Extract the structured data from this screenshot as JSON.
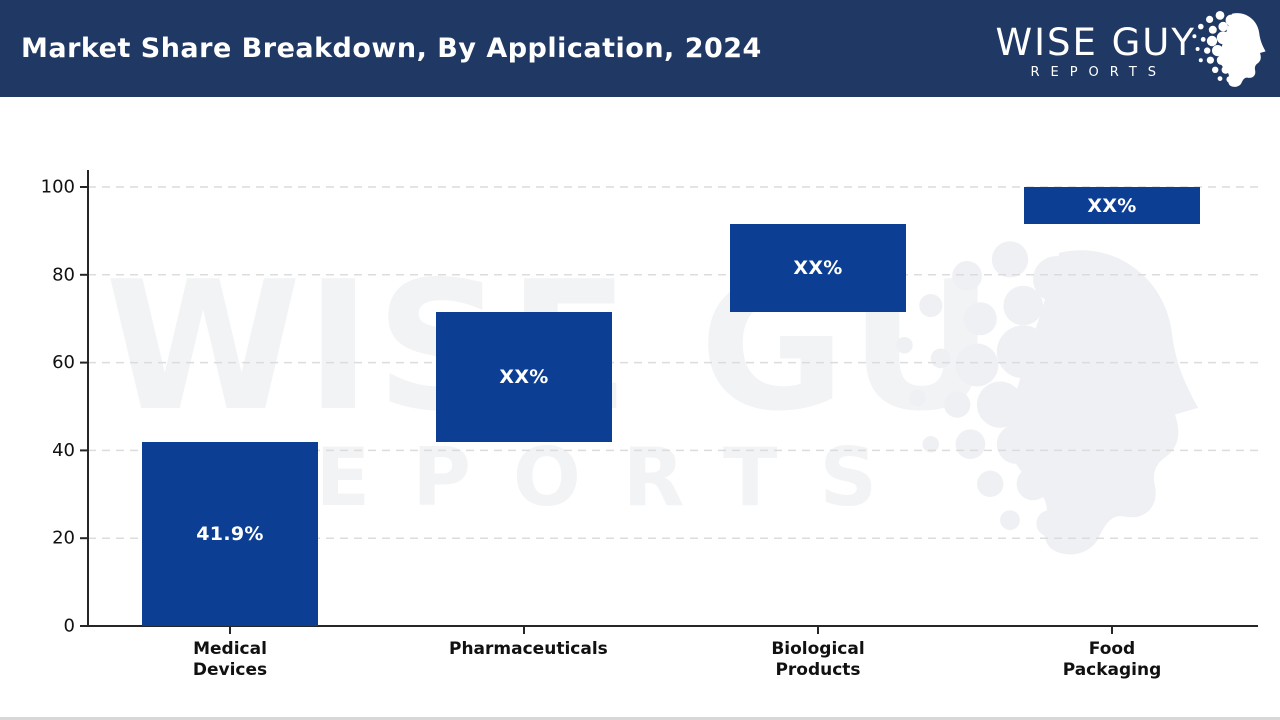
{
  "header": {
    "title": "Market Share Breakdown, By Application, 2024",
    "logo": {
      "line1": "WISE GUY",
      "line2": "REPORTS",
      "head_icon": "dotted-face-profile-icon"
    }
  },
  "watermark": {
    "line1": "WISE GU",
    "line2": "REPORTS",
    "head_icon": "dotted-face-profile-icon"
  },
  "colors": {
    "header_bg": "#1f3864",
    "bar": "#0c3e94",
    "bar_label": "#ffffff",
    "gridline": "#dcdcdc",
    "axis": "#262626",
    "watermark": "#f2f3f5"
  },
  "chart_data": {
    "type": "bar",
    "subtype": "waterfall",
    "title": "Market Share Breakdown, By Application, 2024",
    "categories": [
      "Medical Devices",
      "Pharmaceuticals",
      "Biological Products",
      "Food Packaging"
    ],
    "series": [
      {
        "name": "Market share (%)",
        "segments": [
          {
            "category": "Medical Devices",
            "start": 0,
            "end": 41.9,
            "label": "41.9%"
          },
          {
            "category": "Pharmaceuticals",
            "start": 41.9,
            "end": 71.5,
            "label": "XX%"
          },
          {
            "category": "Biological Products",
            "start": 71.5,
            "end": 91.5,
            "label": "XX%"
          },
          {
            "category": "Food Packaging",
            "start": 91.5,
            "end": 100,
            "label": "XX%"
          }
        ]
      }
    ],
    "xlabel": "",
    "ylabel": "",
    "ylim": [
      0,
      100
    ],
    "yticks": [
      0,
      20,
      40,
      60,
      80,
      100
    ],
    "grid": "horizontal-dashed",
    "legend": "none"
  }
}
